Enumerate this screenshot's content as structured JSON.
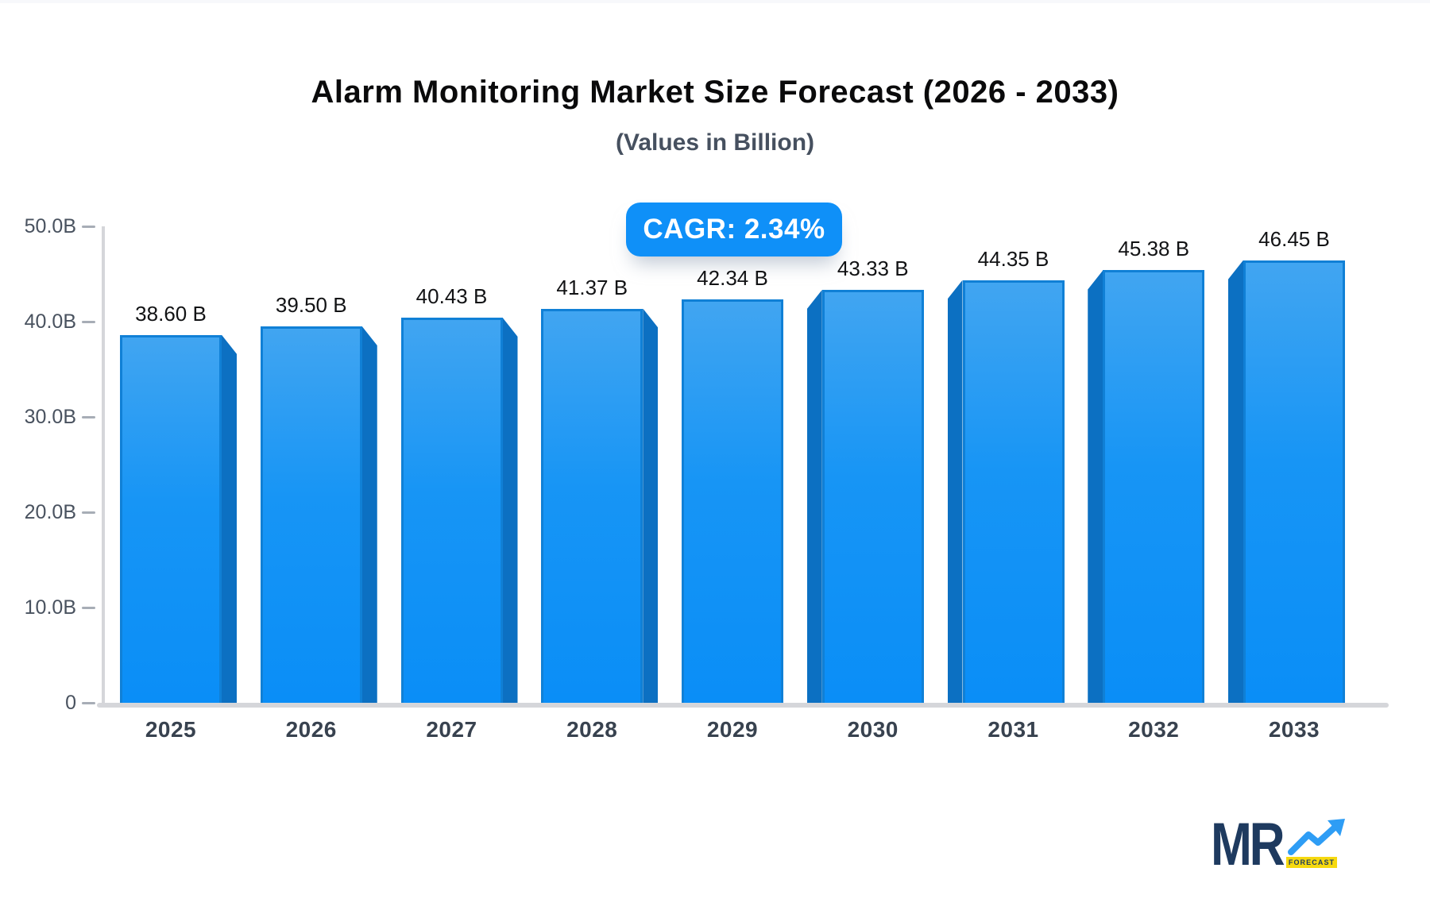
{
  "header": {
    "title": "Alarm Monitoring Market Size Forecast (2026 - 2033)",
    "subtitle": "(Values in Billion)",
    "cagr_label": "CAGR: 2.34%"
  },
  "chart_data": {
    "type": "bar",
    "title": "Alarm Monitoring Market Size Forecast (2026 - 2033)",
    "subtitle": "(Values in Billion)",
    "cagr_percent": 2.34,
    "categories": [
      "2025",
      "2026",
      "2027",
      "2028",
      "2029",
      "2030",
      "2031",
      "2032",
      "2033"
    ],
    "values": [
      38.6,
      39.5,
      40.43,
      41.37,
      42.34,
      43.33,
      44.35,
      45.38,
      46.45
    ],
    "value_labels": [
      "38.60 B",
      "39.50 B",
      "40.43 B",
      "41.37 B",
      "42.34 B",
      "43.33 B",
      "44.35 B",
      "45.38 B",
      "46.45 B"
    ],
    "bar_3d_side": [
      "right",
      "right",
      "right",
      "right",
      "none",
      "left",
      "left",
      "left",
      "left"
    ],
    "xlabel": "",
    "ylabel": "",
    "ylim": [
      0,
      50
    ],
    "y_ticks": [
      {
        "value": 0,
        "label": "0"
      },
      {
        "value": 10,
        "label": "10.0B"
      },
      {
        "value": 20,
        "label": "20.0B"
      },
      {
        "value": 30,
        "label": "30.0B"
      },
      {
        "value": 40,
        "label": "40.0B"
      },
      {
        "value": 50,
        "label": "50.0B"
      }
    ],
    "grid": false,
    "legend": false
  },
  "logo": {
    "brand": "MR",
    "sub_label": "FORECAST"
  },
  "colors": {
    "accent_blue": "#0f90f8",
    "bar_gradient_top": "#41a5f1",
    "bar_gradient_bottom": "#0a8ef7",
    "bar_side_dark": "#0c70c2",
    "axis_gray": "#d5d6da",
    "logo_navy": "#1e3a5f",
    "logo_yellow": "#f6d90f"
  }
}
